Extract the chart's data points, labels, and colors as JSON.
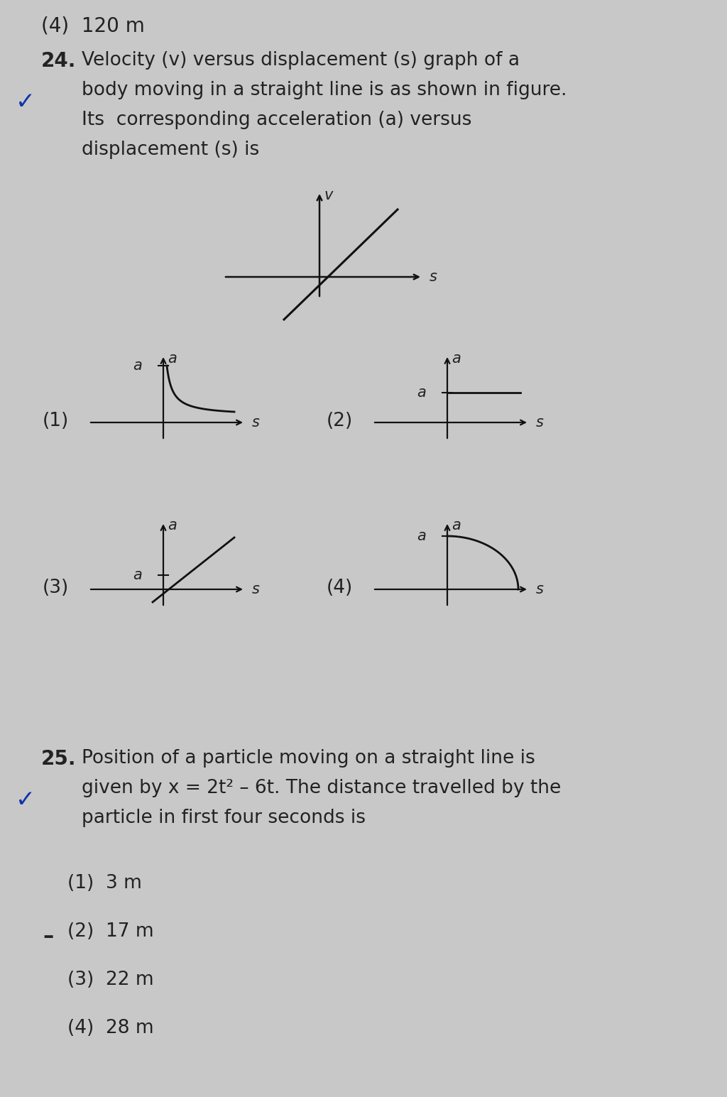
{
  "bg_color": "#c8c8c8",
  "text_color": "#222222",
  "line_color": "#111111",
  "top_text": "(4)  120 m",
  "q24_label": "24.",
  "q24_text_line1": "Velocity (v) versus displacement (s) graph of a",
  "q24_text_line2": "body moving in a straight line is as shown in figure.",
  "q24_text_line3": "Its  corresponding acceleration (a) versus",
  "q24_text_line4": "displacement (s) is",
  "q25_label": "25.",
  "q25_text_line1": "Position of a particle moving on a straight line is",
  "q25_text_line2": "given by x = 2t² – 6t. The distance travelled by the",
  "q25_text_line3": "particle in first four seconds is",
  "q25_options": [
    "(1)  3 m",
    "(2)  17 m",
    "(3)  22 m",
    "(4)  28 m"
  ],
  "q25_marked": 1,
  "checkmark_color": "#1133aa"
}
